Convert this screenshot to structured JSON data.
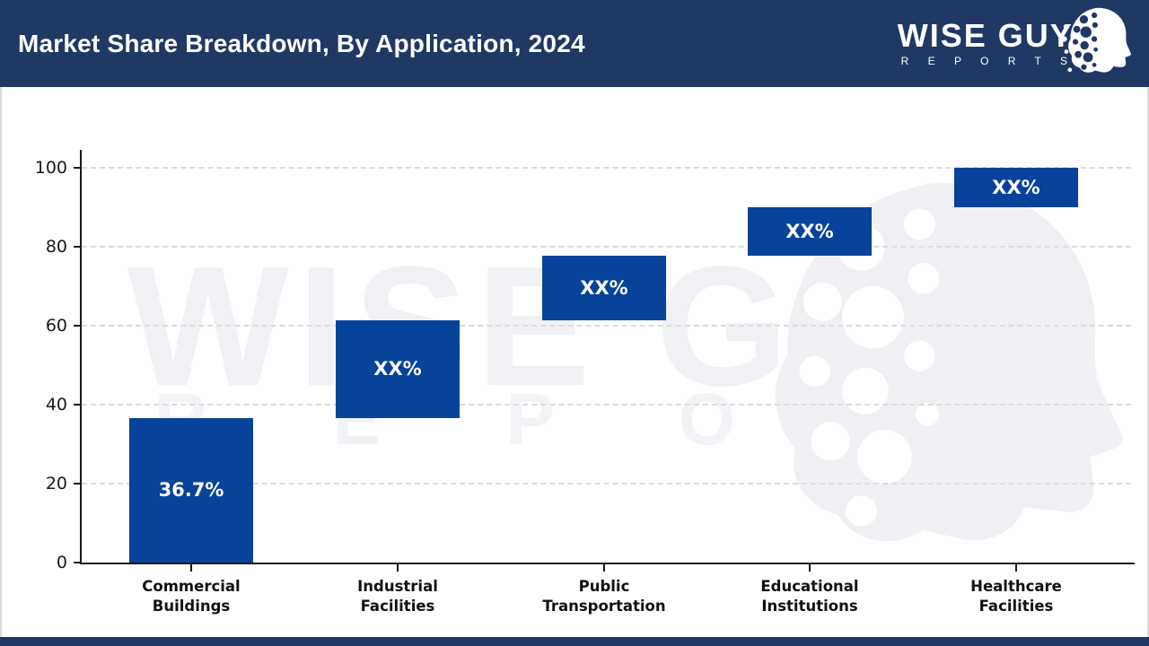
{
  "header": {
    "title": "Market Share Breakdown, By Application, 2024",
    "logo": {
      "line1": "WISE GUY",
      "line2": "R E P O R T S"
    }
  },
  "watermark": {
    "line1": "WISE GUY",
    "line2": "R E P O R T S"
  },
  "colors": {
    "header_navy": "#203864",
    "bar_blue": "#07439a",
    "gridline": "#dcdcdc",
    "axis": "#1a1a1a",
    "bar_label": "#ffffff",
    "watermark_gray": "#f0f1f4"
  },
  "chart_data": {
    "type": "bar",
    "subtype": "waterfall",
    "title": "Market Share Breakdown, By Application, 2024",
    "xlabel": "",
    "ylabel": "",
    "ylim": [
      0,
      105
    ],
    "yticks": [
      0,
      20,
      40,
      60,
      80,
      100
    ],
    "grid": "horizontal-dashed",
    "legend": "none",
    "bar_color": "#07439a",
    "categories": [
      [
        "Commercial",
        "Buildings"
      ],
      [
        "Industrial",
        "Facilities"
      ],
      [
        "Public",
        "Transportation"
      ],
      [
        "Educational",
        "Institutions"
      ],
      [
        "Healthcare",
        "Facilities"
      ]
    ],
    "segments": [
      {
        "category": "Commercial Buildings",
        "start": 0,
        "end": 36.7,
        "value": 36.7,
        "label": "36.7%"
      },
      {
        "category": "Industrial Facilities",
        "start": 36.7,
        "end": 61.4,
        "value": 24.7,
        "label": "XX%"
      },
      {
        "category": "Public Transportation",
        "start": 61.4,
        "end": 77.8,
        "value": 16.4,
        "label": "XX%"
      },
      {
        "category": "Educational Institutions",
        "start": 77.8,
        "end": 90.1,
        "value": 12.3,
        "label": "XX%"
      },
      {
        "category": "Healthcare Facilities",
        "start": 90.1,
        "end": 100,
        "value": 9.9,
        "label": "XX%"
      }
    ]
  }
}
